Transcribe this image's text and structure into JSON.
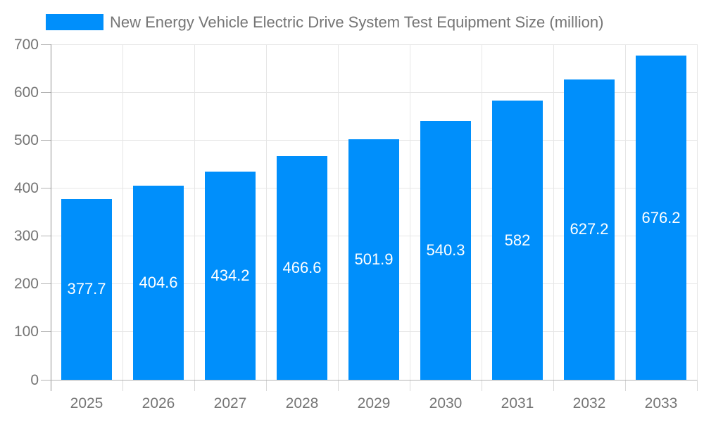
{
  "legend": {
    "series_label": "New Energy Vehicle Electric Drive System Test Equipment Size (million)"
  },
  "chart_data": {
    "type": "bar",
    "title": "New Energy Vehicle Electric Drive System Test Equipment Size (million)",
    "categories": [
      "2025",
      "2026",
      "2027",
      "2028",
      "2029",
      "2030",
      "2031",
      "2032",
      "2033"
    ],
    "values": [
      377.7,
      404.6,
      434.2,
      466.6,
      501.9,
      540.3,
      582,
      627.2,
      676.2
    ],
    "value_labels": [
      "377.7",
      "404.6",
      "434.2",
      "466.6",
      "501.9",
      "540.3",
      "582",
      "627.2",
      "676.2"
    ],
    "xlabel": "",
    "ylabel": "",
    "ylim": [
      0,
      700
    ],
    "ytick_step": 100,
    "yticks": [
      0,
      100,
      200,
      300,
      400,
      500,
      600,
      700
    ],
    "grid": true,
    "legend_position": "top",
    "colors": {
      "bar": "#008FFB",
      "bar_value_text": "#ffffff",
      "axis_text": "#757575",
      "legend_text": "#757575",
      "h_gridline": "#e6e6e6",
      "v_gridline": "#e6e6e6",
      "x_axis_line": "#b3b3b3",
      "y_axis_line": "#909090",
      "y_tick": "#b3b3b3",
      "x_tick": "#d9d9d9"
    }
  }
}
